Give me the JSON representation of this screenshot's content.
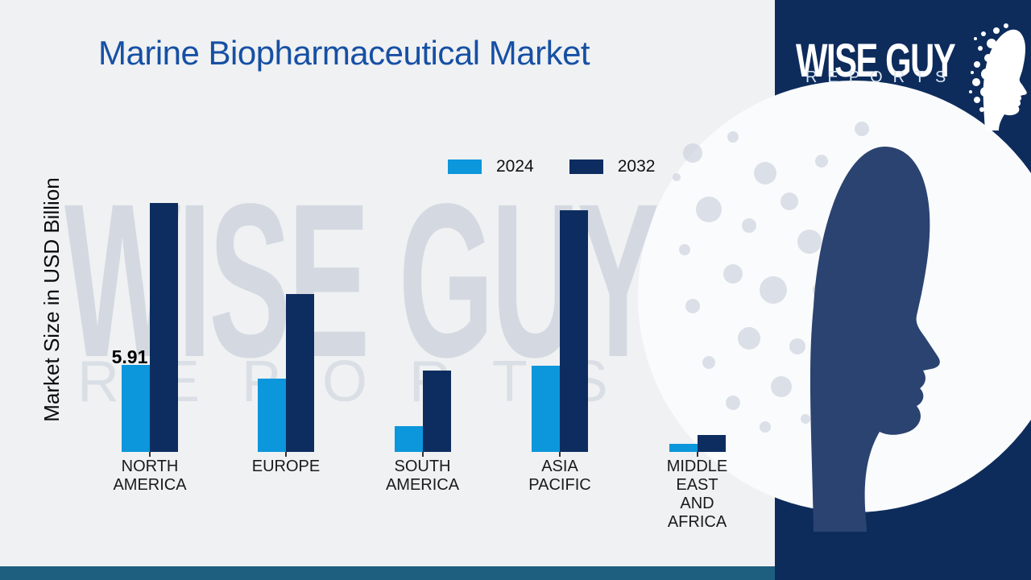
{
  "page": {
    "title": "Marine Biopharmaceutical Market",
    "y_axis_label": "Market Size in USD Billion"
  },
  "legend": {
    "items": [
      {
        "label": "2024",
        "color": "#0c96db"
      },
      {
        "label": "2032",
        "color": "#0d2d60"
      }
    ]
  },
  "chart_data": {
    "type": "bar",
    "title": "Marine Biopharmaceutical Market",
    "ylabel": "Market Size in USD Billion",
    "unit": "USD Billion",
    "categories": [
      "NORTH AMERICA",
      "EUROPE",
      "SOUTH AMERICA",
      "ASIA PACIFIC",
      "MIDDLE EAST AND AFRICA"
    ],
    "category_lines": [
      [
        "NORTH",
        "AMERICA"
      ],
      [
        "EUROPE"
      ],
      [
        "SOUTH",
        "AMERICA"
      ],
      [
        "ASIA",
        "PACIFIC"
      ],
      [
        "MIDDLE",
        "EAST",
        "AND",
        "AFRICA"
      ]
    ],
    "series": [
      {
        "name": "2024",
        "color": "#0c96db",
        "values": [
          5.91,
          5.0,
          1.75,
          5.86,
          0.55
        ]
      },
      {
        "name": "2032",
        "color": "#0d2d60",
        "values": [
          16.9,
          10.7,
          5.5,
          16.4,
          1.15
        ]
      }
    ],
    "data_labels": [
      {
        "series": "2024",
        "category": "NORTH AMERICA",
        "text": "5.91"
      }
    ],
    "ylim": [
      0,
      18
    ],
    "grid": false,
    "legend_position": "top"
  },
  "watermark": {
    "line1": "WISE GUY",
    "line2": "REPORTS"
  },
  "logo": {
    "line1": "WISE GUY",
    "line2": "REPORTS"
  },
  "colors": {
    "background": "#f0f1f3",
    "panel_navy": "#0d2c5c",
    "bar_2024": "#0c96db",
    "bar_2032": "#0d2d60",
    "bottom_strip_teal": "#1e5f80",
    "title_blue": "#1650a4"
  }
}
